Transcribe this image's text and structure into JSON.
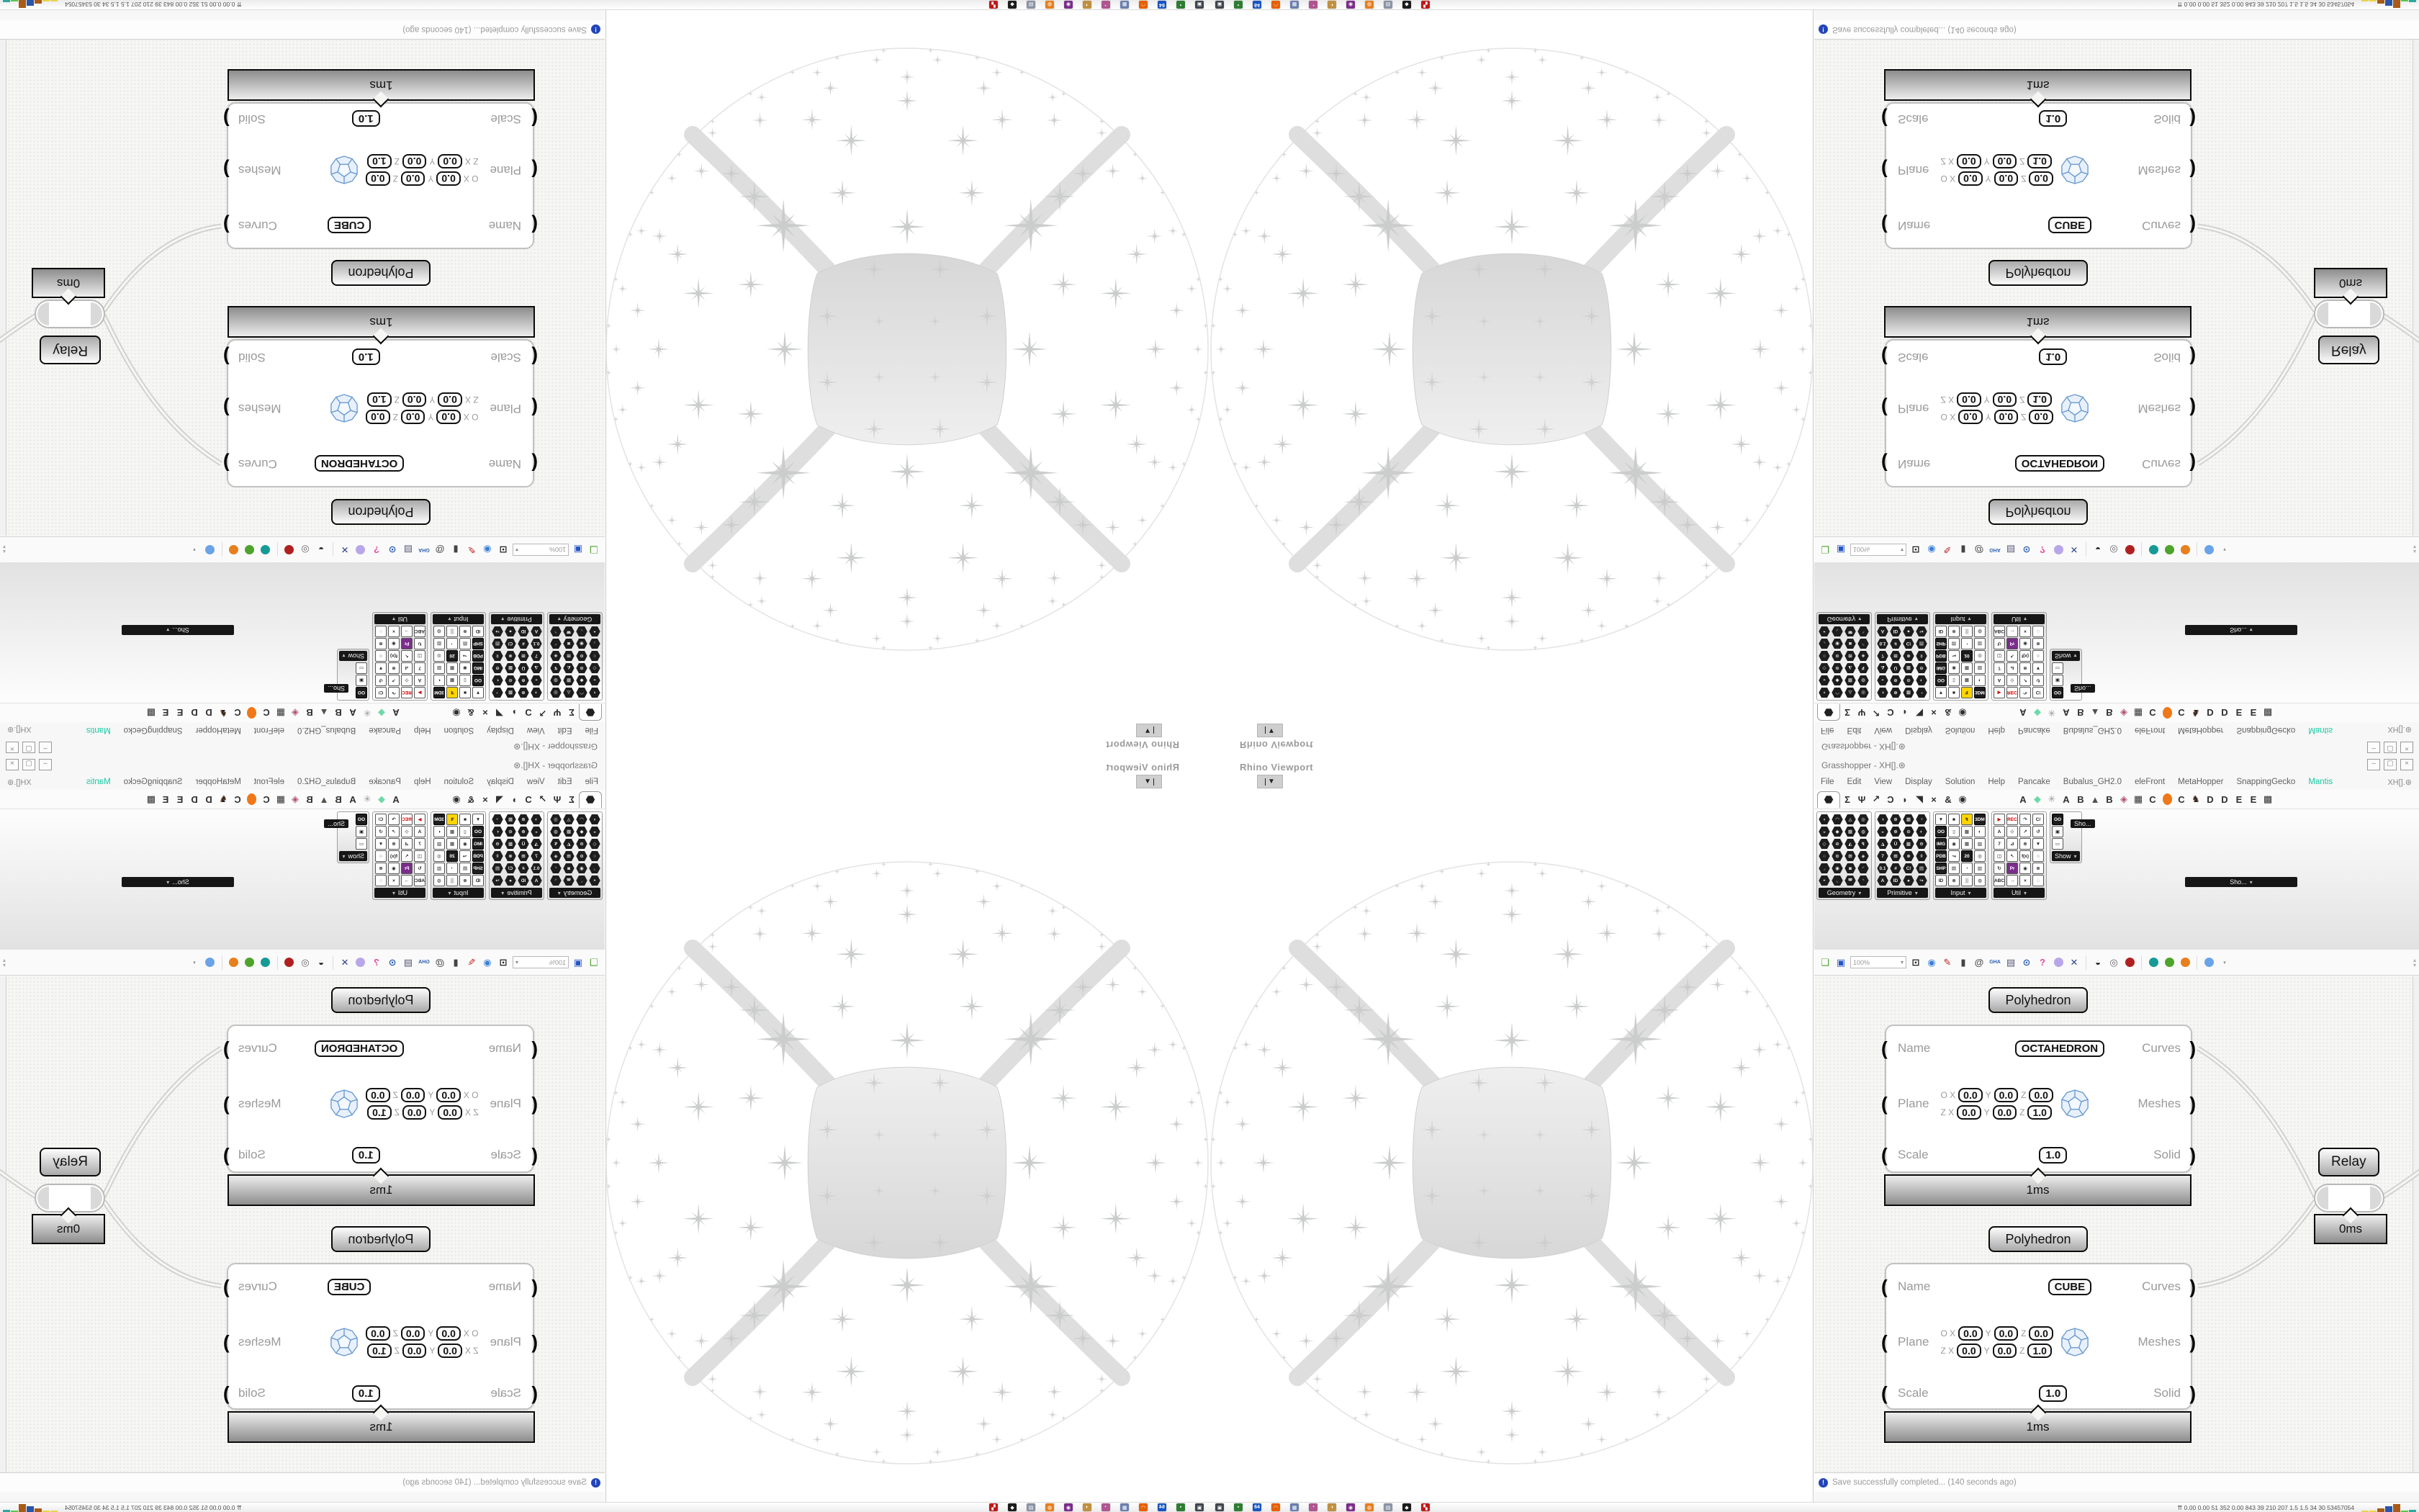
{
  "window": {
    "title": "Grasshopper - XH[].⊛",
    "buttons": {
      "minimize": "–",
      "maximize": "▢",
      "close": "×"
    }
  },
  "menu": {
    "items": [
      "File",
      "Edit",
      "View",
      "Display",
      "Solution",
      "Help",
      "Pancake",
      "Bubalus_GH2.0",
      "eleFront",
      "MetaHopper",
      "SnappingGecko",
      "Mantis"
    ],
    "highlight_item": "Mantis",
    "right_text": "XH[].⊛",
    "mantis_color": "#17c9a5"
  },
  "tabs": [
    {
      "name": "tab-params",
      "type": "hex"
    },
    {
      "name": "tab-maths",
      "glyph": "Σ"
    },
    {
      "name": "tab-sets",
      "glyph": "Ψ"
    },
    {
      "name": "tab-vector",
      "glyph": "↗"
    },
    {
      "name": "tab-curve",
      "glyph": "Ɔ"
    },
    {
      "name": "tab-surface",
      "glyph": "◗"
    },
    {
      "name": "tab-mesh",
      "glyph": "◥"
    },
    {
      "name": "tab-intersect",
      "glyph": "×"
    },
    {
      "name": "tab-transform",
      "glyph": "&"
    },
    {
      "name": "tab-display",
      "glyph": "◉"
    },
    {
      "name": "tab-gap",
      "type": "gap"
    },
    {
      "name": "tab-plugin-a1",
      "glyph": "A"
    },
    {
      "name": "tab-plugin-gem",
      "glyph": "◆",
      "color": "#6fd9a8"
    },
    {
      "name": "tab-plugin-cog",
      "glyph": "✳",
      "color": "#9a9a9a"
    },
    {
      "name": "tab-plugin-a2",
      "glyph": "A"
    },
    {
      "name": "tab-plugin-b1",
      "glyph": "B"
    },
    {
      "name": "tab-plugin-mountain",
      "glyph": "▲",
      "color": "#55504a"
    },
    {
      "name": "tab-plugin-b2",
      "glyph": "B"
    },
    {
      "name": "tab-plugin-shield",
      "glyph": "◈",
      "color": "#b05070"
    },
    {
      "name": "tab-plugin-grid",
      "glyph": "▦"
    },
    {
      "name": "tab-plugin-c1",
      "glyph": "C"
    },
    {
      "name": "tab-plugin-orange",
      "type": "dot",
      "color": "#f07818"
    },
    {
      "name": "tab-plugin-c2",
      "glyph": "C"
    },
    {
      "name": "tab-plugin-bird",
      "glyph": "♞",
      "color": "#3a2418"
    },
    {
      "name": "tab-plugin-d1",
      "glyph": "D"
    },
    {
      "name": "tab-plugin-d2",
      "glyph": "D"
    },
    {
      "name": "tab-plugin-e1",
      "glyph": "E"
    },
    {
      "name": "tab-plugin-e2",
      "glyph": "E"
    },
    {
      "name": "tab-plugin-checker",
      "glyph": "▩"
    }
  ],
  "palettes": {
    "groups": [
      {
        "name": "Geometry",
        "style": "hex",
        "icons": [
          "◖",
          "◠",
          "◬",
          "◎",
          "◒",
          "◆",
          "▦",
          "◍",
          "◇",
          "⊘",
          "◭",
          "↯",
          "○",
          "⊙",
          "⊞",
          "◈",
          "◞",
          "◉",
          "◙",
          "◜",
          "◓",
          "◟",
          "◚",
          "◝"
        ]
      },
      {
        "name": "Primitive",
        "style": "hex",
        "icons": [
          "◑",
          "⊛",
          "▦",
          "◔",
          "◒",
          "⊕",
          "⊙",
          "◐",
          "◮",
          "Ü",
          "▩",
          "⊖",
          "7",
          "⊞",
          "⊗",
          "◊",
          "0.1",
          "#",
          "C/",
          "▤",
          "A",
          "ID",
          "●",
          "↪"
        ]
      },
      {
        "name": "Input",
        "style": "sq",
        "icons": [
          "▼",
          "■",
          "↯",
          "3DM",
          "OO",
          "▯",
          "▩",
          "◐",
          "IMG",
          "◉",
          "▦",
          "▨",
          "PDB",
          "↝",
          "20",
          "◎",
          "SHP",
          "▤",
          "◔",
          "▥",
          "ID",
          "⊚",
          "▒",
          "◍"
        ]
      },
      {
        "name": "Util",
        "style": "sq",
        "icons": [
          "▶",
          "REC",
          "↷",
          "C/",
          "A",
          "⊹",
          "↗",
          "↺",
          "7",
          "⊿",
          "⊕",
          "▼",
          "◫",
          "↖",
          "f(x)",
          "○",
          "↻",
          "Pr",
          "◉",
          "⊛",
          "ABC",
          "→",
          "×",
          "◌"
        ]
      },
      {
        "name": "Show",
        "style": "sq",
        "cols": 1,
        "icons": [
          "OO",
          "▣",
          "▭"
        ]
      }
    ],
    "overflow_tag": "Sho...",
    "overflow_title": "Sho..."
  },
  "toolbar": {
    "zoom_value": "100%",
    "icons": [
      {
        "name": "open-file-icon",
        "glyph": "❏",
        "color": "#4ea32a"
      },
      {
        "name": "save-file-icon",
        "glyph": "▣",
        "color": "#2855c8"
      },
      {
        "name": "zoom-combo",
        "type": "combo"
      },
      {
        "name": "zoom-extents-icon",
        "glyph": "⊡",
        "color": "#222"
      },
      {
        "name": "preview-eye-icon",
        "glyph": "◉",
        "color": "#3a7fd5"
      },
      {
        "name": "paint-pen-icon",
        "glyph": "✎",
        "color": "#c01818"
      },
      {
        "name": "sketch-icon",
        "glyph": "▮",
        "color": "#444"
      },
      {
        "name": "at-icon",
        "glyph": "@",
        "color": "#555"
      },
      {
        "name": "gha-globe-icon",
        "glyph": "GHA",
        "color": "#2a5fb0",
        "small": true
      },
      {
        "name": "document-icon",
        "glyph": "▤",
        "color": "#557",
        "small": false
      },
      {
        "name": "search-icon",
        "glyph": "⊙",
        "color": "#2a5fb0"
      },
      {
        "name": "help-box-icon",
        "glyph": "?",
        "color": "#e8489c"
      },
      {
        "name": "bulb-icon",
        "glyph": "ball",
        "color": "#b9a6e8"
      },
      {
        "name": "crossed-wires-icon",
        "glyph": "✕",
        "color": "#334488"
      },
      {
        "name": "sep1",
        "type": "sep"
      },
      {
        "name": "preview-off-icon",
        "glyph": "◒",
        "color": "#222"
      },
      {
        "name": "preview-wire-icon",
        "glyph": "◎",
        "color": "#666"
      },
      {
        "name": "preview-shaded-icon",
        "glyph": "ball",
        "color": "#b02020"
      },
      {
        "name": "sep2",
        "type": "sep"
      },
      {
        "name": "pin-teal-icon",
        "glyph": "ball",
        "color": "#159a96"
      },
      {
        "name": "pin-green-icon",
        "glyph": "ball",
        "color": "#4ea32a"
      },
      {
        "name": "ball-orange-icon",
        "glyph": "ball",
        "color": "#e87f1e"
      },
      {
        "name": "sep3",
        "type": "sep"
      },
      {
        "name": "ball-blue-icon",
        "glyph": "ball",
        "color": "#6aa3e8"
      },
      {
        "name": "dropdown-caret",
        "glyph": "▾",
        "color": "#888",
        "small": true
      }
    ]
  },
  "canvas": {
    "components": [
      {
        "title": "Polyhedron",
        "name_value": "OCTAHEDRON",
        "inputs": [
          "Name",
          "Plane",
          "Scale"
        ],
        "outputs": [
          "Curves",
          "Meshes",
          "Solid"
        ],
        "plane_rows": [
          [
            {
              "l": "O X",
              "v": "0.0"
            },
            {
              "l": "Y",
              "v": "0.0"
            },
            {
              "l": "Z",
              "v": "0.0"
            }
          ],
          [
            {
              "l": "Z X",
              "v": "0.0"
            },
            {
              "l": "Y",
              "v": "0.0"
            },
            {
              "l": "Z",
              "v": "1.0"
            }
          ]
        ],
        "scale_value": "1.0",
        "time": "1ms"
      },
      {
        "title": "Polyhedron",
        "name_value": "CUBE",
        "inputs": [
          "Name",
          "Plane",
          "Scale"
        ],
        "outputs": [
          "Curves",
          "Meshes",
          "Solid"
        ],
        "plane_rows": [
          [
            {
              "l": "O X",
              "v": "0.0"
            },
            {
              "l": "Y",
              "v": "0.0"
            },
            {
              "l": "Z",
              "v": "0.0"
            }
          ],
          [
            {
              "l": "Z X",
              "v": "0.0"
            },
            {
              "l": "Y",
              "v": "0.0"
            },
            {
              "l": "Z",
              "v": "1.0"
            }
          ]
        ],
        "scale_value": "1.0",
        "time": "1ms"
      }
    ],
    "relay": {
      "label": "Relay",
      "time": "0ms"
    }
  },
  "statusbar": {
    "text": "Save successfully completed... (140 seconds ago)"
  },
  "viewport": {
    "title": "Rhino Viewport"
  },
  "taskbar": {
    "icons": [
      {
        "name": "monitor-app-icon",
        "color": "#40454e",
        "glyph": "▣"
      },
      {
        "name": "floppy-green-app-icon",
        "color": "#2e7d32",
        "glyph": "▪"
      },
      {
        "name": "floppy-blue-app-icon",
        "color": "#1a55c0",
        "glyph": "64"
      },
      {
        "name": "firefox-icon",
        "color": "#e66000",
        "glyph": "◠"
      },
      {
        "name": "calculator-icon",
        "color": "#6a7fae",
        "glyph": "▦"
      },
      {
        "name": "palette-app-icon",
        "color": "#b05590",
        "glyph": "◔"
      },
      {
        "name": "palette2-app-icon",
        "color": "#c09040",
        "glyph": "◑"
      },
      {
        "name": "gimp-icon",
        "color": "#7b2d8b",
        "glyph": "◉"
      },
      {
        "name": "blender-icon",
        "color": "#e87f1e",
        "glyph": "◍"
      },
      {
        "name": "scroll-app-icon",
        "color": "#8a93a5",
        "glyph": "▤"
      },
      {
        "name": "inkscape-icon",
        "color": "#1b1b1b",
        "glyph": "◆"
      },
      {
        "name": "red-app-icon",
        "color": "#c01818",
        "glyph": "▚"
      }
    ],
    "stats_text": "⇈  0.00 0.00   51   352  0.00  843    39    210   207   1.5    1.5    34     30  53457054",
    "graph_bars": [
      {
        "color": "#e8d44c",
        "h": 2
      },
      {
        "color": "#e8d44c",
        "h": 2
      },
      {
        "color": "#a85a18",
        "h": 5
      },
      {
        "color": "#2855a8",
        "h": 8
      },
      {
        "color": "#a85a18",
        "h": 11
      },
      {
        "color": "#57c84a",
        "h": 2
      },
      {
        "color": "#2aa8a0",
        "h": 3
      }
    ]
  }
}
